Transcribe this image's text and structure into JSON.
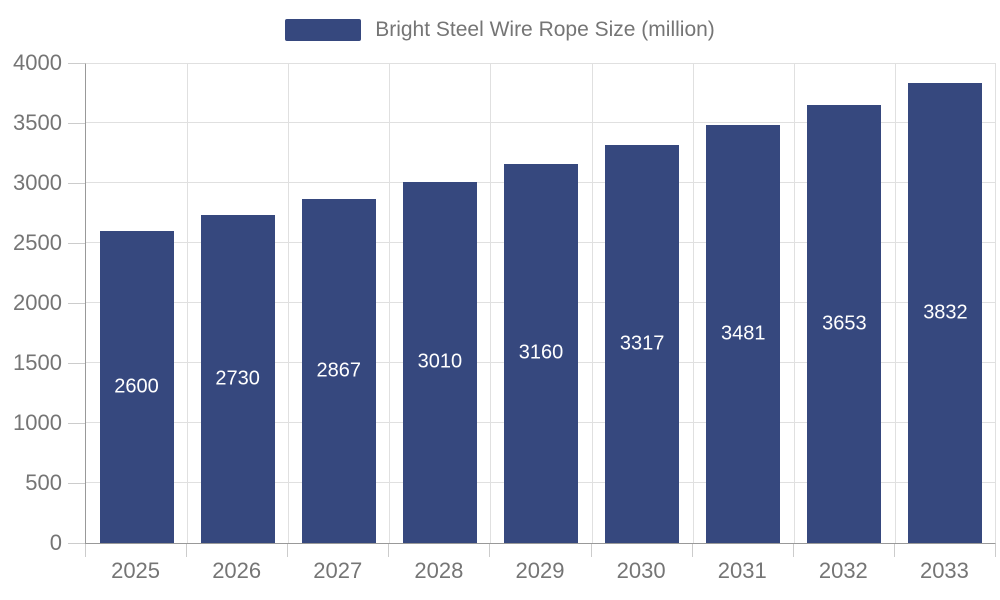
{
  "legend": {
    "label": "Bright Steel Wire Rope Size (million)"
  },
  "chart_data": {
    "type": "bar",
    "title": "Bright Steel Wire Rope Size (million)",
    "series_name": "Bright Steel Wire Rope Size (million)",
    "categories": [
      "2025",
      "2026",
      "2027",
      "2028",
      "2029",
      "2030",
      "2031",
      "2032",
      "2033"
    ],
    "values": [
      2600,
      2730,
      2867,
      3010,
      3160,
      3317,
      3481,
      3653,
      3832
    ],
    "xlabel": "",
    "ylabel": "",
    "ylim": [
      0,
      4000
    ],
    "yticks": [
      0,
      500,
      1000,
      1500,
      2000,
      2500,
      3000,
      3500,
      4000
    ],
    "grid": true,
    "legend_position": "top",
    "bar_color": "#36487E",
    "bar_label_color": "#ffffff",
    "axis_text_color": "#757575",
    "axis_line_color": "#999999",
    "gridline_color": "#e0e0e0"
  }
}
